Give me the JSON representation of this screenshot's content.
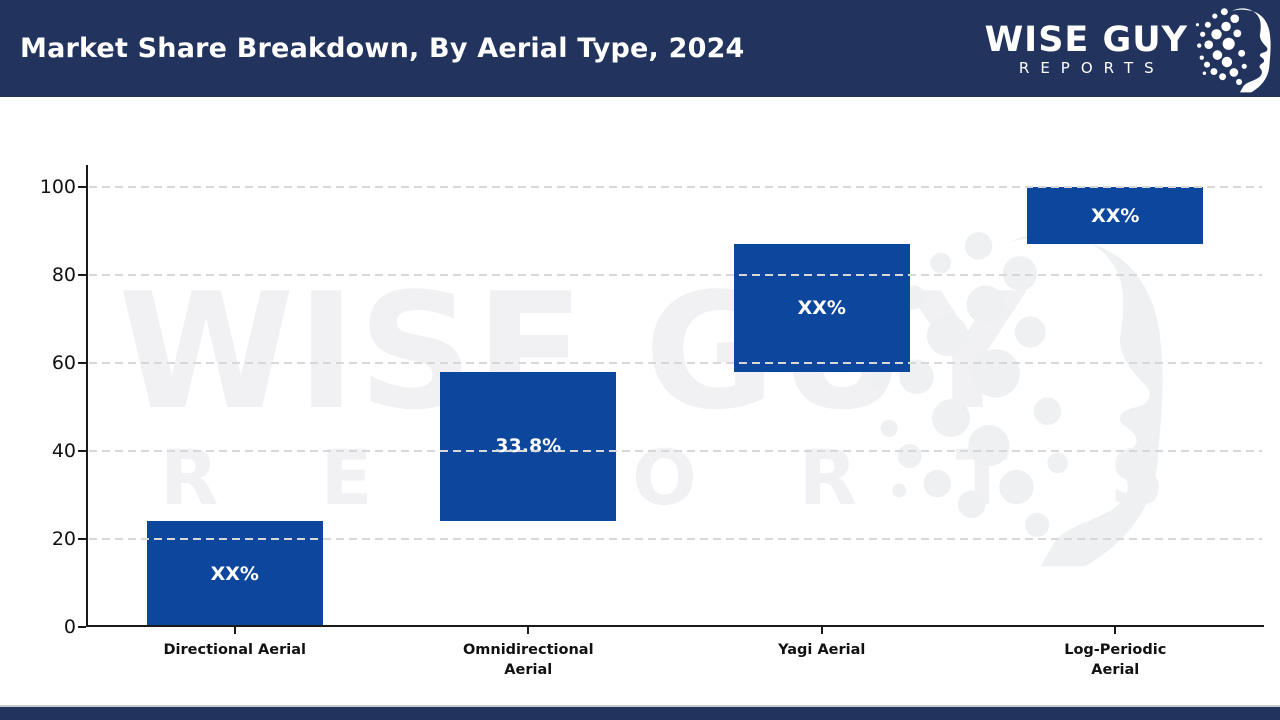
{
  "header": {
    "title": "Market Share Breakdown, By Aerial Type, 2024",
    "logo": {
      "line1": "WISE GUY",
      "line2": "REPORTS"
    }
  },
  "watermark": {
    "line1": "WISE GUY",
    "line2": "REPORTS"
  },
  "theme": {
    "navy": "#22345E",
    "bar_color": "#0C479D",
    "grid_color": "#D8D8D8",
    "axis_color": "#1A1A1A",
    "watermark_color": "#F1F1F3"
  },
  "chart_data": {
    "type": "bar",
    "subtype": "waterfall",
    "title": "Market Share Breakdown, By Aerial Type, 2024",
    "categories": [
      "Directional Aerial",
      "Omnidirectional\nAerial",
      "Yagi Aerial",
      "Log-Periodic\nAerial"
    ],
    "bars": [
      {
        "category": "Directional Aerial",
        "start": 0,
        "end": 24.2,
        "value": 24.2,
        "label": "XX%"
      },
      {
        "category": "Omnidirectional Aerial",
        "start": 24.2,
        "end": 58.0,
        "value": 33.8,
        "label": "33.8%"
      },
      {
        "category": "Yagi Aerial",
        "start": 58.0,
        "end": 87.0,
        "value": 29.0,
        "label": "XX%"
      },
      {
        "category": "Log-Periodic Aerial",
        "start": 87.0,
        "end": 100.0,
        "value": 13.0,
        "label": "XX%"
      }
    ],
    "y_ticks": [
      0,
      20,
      40,
      60,
      80,
      100
    ],
    "ylim": [
      0,
      105
    ],
    "xlabel": "",
    "ylabel": "",
    "grid": "dashed horizontal, drawn above bars",
    "legend": "none",
    "bar_label_color": "#FFFFFF"
  }
}
